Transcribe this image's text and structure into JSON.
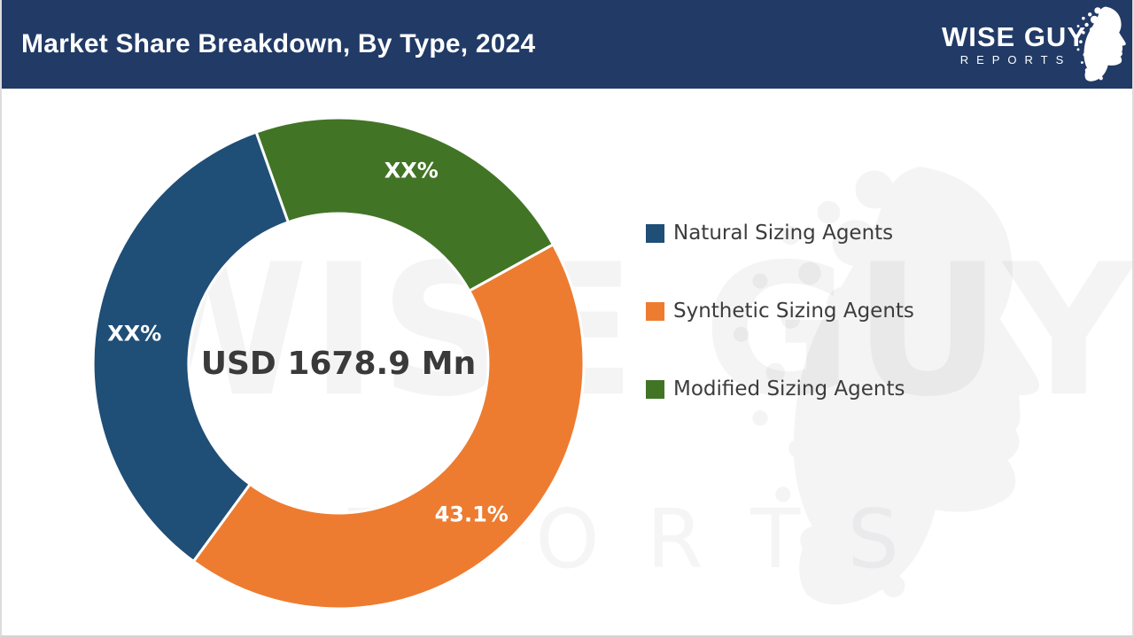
{
  "header": {
    "title": "Market Share Breakdown, By Type, 2024",
    "logo": {
      "line1": "WISE GUY",
      "line2": "REPORTS"
    }
  },
  "watermark": {
    "line1": "WISE GUY",
    "line2": "R E P O R T S"
  },
  "chart_data": {
    "type": "donut",
    "title": "Market Share Breakdown, By Type, 2024",
    "center_label": "USD 1678.9 Mn",
    "start_angle_deg_clockwise_from_top": -19.6,
    "outer_radius_px": 277,
    "inner_radius_ratio": 0.61,
    "slice_gap_color": "#ffffff",
    "segments": [
      {
        "name": "Modified Sizing Agents",
        "value_pct": 22.4,
        "displayed_label": "XX%",
        "color": "#427426",
        "label_r_ratio": 0.84
      },
      {
        "name": "Synthetic Sizing Agents",
        "value_pct": 43.1,
        "displayed_label": "43.1%",
        "color": "#ED7C31",
        "label_r_ratio": 0.82
      },
      {
        "name": "Natural Sizing Agents",
        "value_pct": 34.5,
        "displayed_label": "XX%",
        "color": "#1F4E77",
        "label_r_ratio": 0.84
      }
    ],
    "legend": {
      "position": "right",
      "items": [
        {
          "label": "Natural Sizing Agents",
          "color": "#1F4E77"
        },
        {
          "label": "Synthetic Sizing Agents",
          "color": "#ED7C31"
        },
        {
          "label": "Modified Sizing Agents",
          "color": "#427426"
        }
      ]
    }
  },
  "colors": {
    "header_bg": "#213A66",
    "body_bg": "#FFFFFF",
    "center_text": "#3A3A3A",
    "legend_text": "#3C3C3C",
    "border": "#D9D9D9"
  }
}
